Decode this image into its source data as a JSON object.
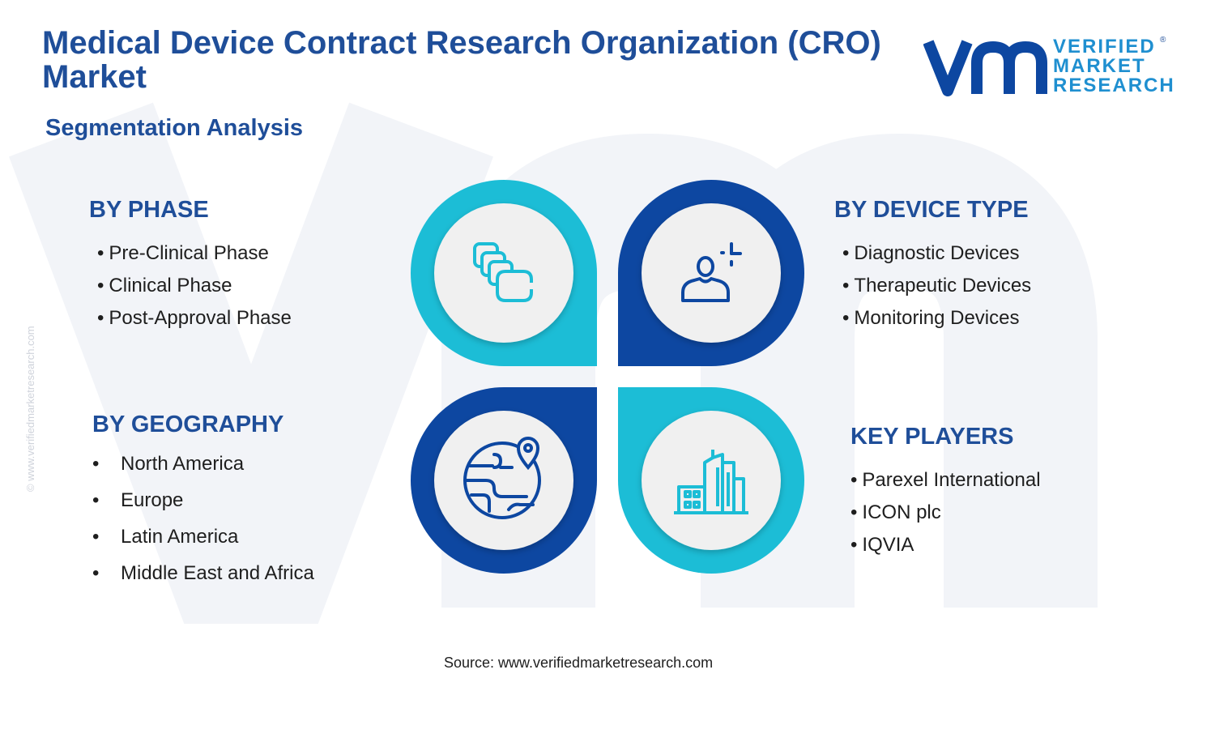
{
  "title": "Medical Device Contract Research Organization (CRO) Market",
  "subtitle": "Segmentation Analysis",
  "brand": {
    "line1": "VERIFIED",
    "line2": "MARKET",
    "line3": "RESEARCH",
    "registered": "®"
  },
  "watermark_text": "© www.verifiedmarketresearch.com",
  "source": "Source: www.verifiedmarketresearch.com",
  "colors": {
    "navy": "#1f4e99",
    "teal": "#1cbdd6",
    "dark_blue": "#0d47a1",
    "disc": "#f0f0f0"
  },
  "segments": {
    "phase": {
      "heading": "BY PHASE",
      "icon": "stacked-cards-icon",
      "items": [
        "Pre-Clinical Phase",
        "Clinical Phase",
        "Post-Approval Phase"
      ]
    },
    "device_type": {
      "heading": "BY DEVICE TYPE",
      "icon": "person-plus-icon",
      "items": [
        "Diagnostic Devices",
        "Therapeutic Devices",
        "Monitoring Devices"
      ]
    },
    "geography": {
      "heading": "BY GEOGRAPHY",
      "icon": "globe-pin-icon",
      "items": [
        "North America",
        "Europe",
        "Latin America",
        "Middle East and Africa"
      ]
    },
    "key_players": {
      "heading": "KEY PLAYERS",
      "icon": "buildings-icon",
      "items": [
        "Parexel International",
        "ICON plc",
        "IQVIA"
      ]
    }
  }
}
